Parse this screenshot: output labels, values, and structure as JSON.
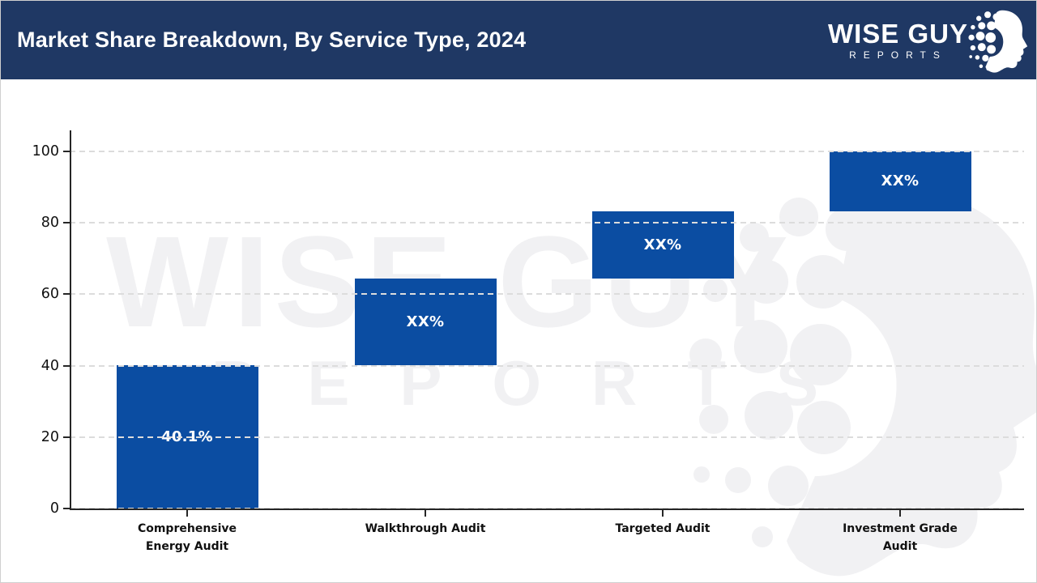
{
  "header": {
    "title": "Market Share Breakdown, By Service Type, 2024",
    "logo": {
      "line1": "WISE GUY",
      "line2": "REPORTS"
    }
  },
  "watermark": {
    "line1": "WISE GUY",
    "line2": "REPORTS"
  },
  "colors": {
    "header_bg": "#1f3864",
    "bar": "#0b4da2",
    "grid": "#dcdcdc",
    "axis": "#262626",
    "bar_label": "#ffffff",
    "watermark": "#f1f1f3"
  },
  "chart_data": {
    "type": "bar",
    "subtype": "waterfall-floating-bars",
    "title": "Market Share Breakdown, By Service Type, 2024",
    "categories": [
      "Comprehensive Energy Audit",
      "Walkthrough Audit",
      "Targeted Audit",
      "Investment Grade Audit"
    ],
    "category_lines": [
      [
        "Comprehensive",
        "Energy Audit"
      ],
      [
        "Walkthrough Audit"
      ],
      [
        "Targeted Audit"
      ],
      [
        "Investment Grade",
        "Audit"
      ]
    ],
    "segments": [
      {
        "category": "Comprehensive Energy Audit",
        "start": 0,
        "end": 40.1,
        "label": "40.1%"
      },
      {
        "category": "Walkthrough Audit",
        "start": 40.1,
        "end": 64.5,
        "label": "XX%"
      },
      {
        "category": "Targeted Audit",
        "start": 64.5,
        "end": 83.3,
        "label": "XX%"
      },
      {
        "category": "Investment Grade Audit",
        "start": 83.3,
        "end": 100,
        "label": "XX%"
      }
    ],
    "xlabel": "",
    "ylabel": "",
    "ylim": [
      0,
      100
    ],
    "yticks": [
      0,
      20,
      40,
      60,
      80,
      100
    ],
    "grid": "horizontal dashed",
    "legend_position": "none",
    "bar_color": "#0b4da2",
    "value_label_color": "#ffffff"
  }
}
